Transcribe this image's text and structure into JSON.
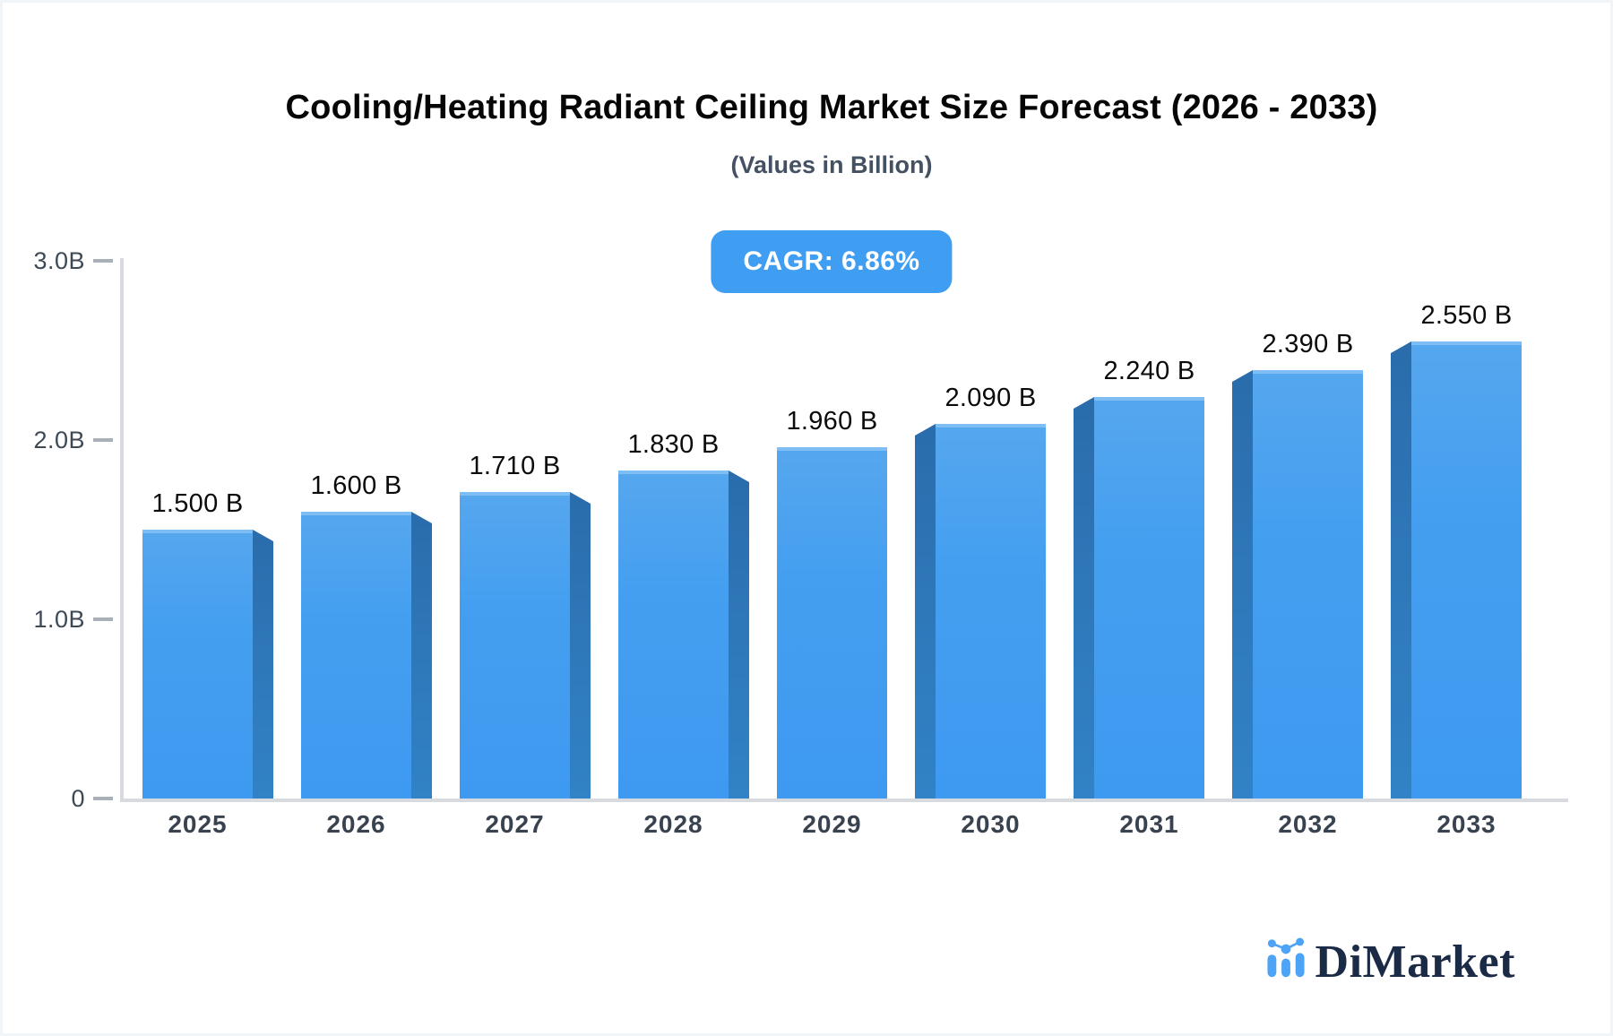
{
  "header": {
    "title": "Cooling/Heating Radiant Ceiling Market Size Forecast (2026 - 2033)",
    "subtitle": "(Values in Billion)"
  },
  "badge": {
    "label": "CAGR: 6.86%",
    "background": "#3f9df2",
    "text_color": "#ffffff"
  },
  "chart_data": {
    "type": "bar",
    "title": "Cooling/Heating Radiant Ceiling Market Size Forecast (2026 - 2033)",
    "subtitle": "(Values in Billion)",
    "cagr": "6.86%",
    "categories": [
      "2025",
      "2026",
      "2027",
      "2028",
      "2029",
      "2030",
      "2031",
      "2032",
      "2033"
    ],
    "values": [
      1.5,
      1.6,
      1.71,
      1.83,
      1.96,
      2.09,
      2.24,
      2.39,
      2.55
    ],
    "value_labels": [
      "1.500 B",
      "1.600 B",
      "1.710 B",
      "1.830 B",
      "1.960 B",
      "2.090 B",
      "2.240 B",
      "2.390 B",
      "2.550 B"
    ],
    "ylabel": "",
    "xlabel": "",
    "ylim": [
      0,
      3
    ],
    "yticks": [
      {
        "label": "0",
        "value": 0
      },
      {
        "label": "1.0B",
        "value": 1
      },
      {
        "label": "2.0B",
        "value": 2
      },
      {
        "label": "3.0B",
        "value": 3
      }
    ],
    "grid": false,
    "legend": "none",
    "bar_face_color": "#459ff0",
    "bar_side_color": "#2e77b8",
    "effect": "3d-extruded-perspective"
  },
  "logo": {
    "text": "DiMarket",
    "icon": "bar-chart-trend-icon",
    "icon_color": "#4da3f5",
    "text_color": "#1c2b45"
  }
}
